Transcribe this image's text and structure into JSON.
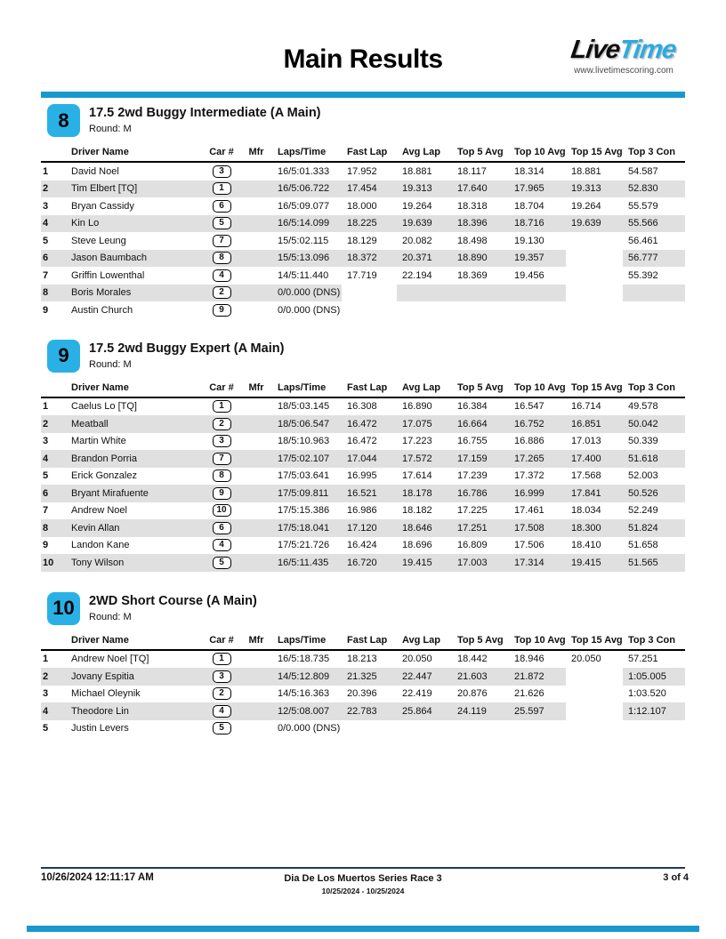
{
  "page": {
    "title": "Main Results",
    "logo": {
      "live": "Live",
      "time": "Time",
      "url": "www.livetimescoring.com"
    },
    "footer": {
      "printed": "10/26/2024 12:11:17 AM",
      "event": "Dia De Los Muertos Series Race 3",
      "dates": "10/25/2024 - 10/25/2024",
      "page": "3 of 4"
    },
    "colors": {
      "accent_badge": "#29b1e6",
      "header_rule": "#1899cc",
      "row_stripe": "#e0e0e0",
      "footer_line": "#1f3864",
      "logo_time": "#29abe2"
    }
  },
  "columns": [
    "Driver Name",
    "Car #",
    "Mfr",
    "Laps/Time",
    "Fast Lap",
    "Avg Lap",
    "Top 5 Avg",
    "Top 10 Avg",
    "Top 15 Avg",
    "Top 3 Con"
  ],
  "sections": [
    {
      "number": "8",
      "title": "17.5 2wd Buggy Intermediate (A Main)",
      "round": "Round: M",
      "rows": [
        {
          "pos": "1",
          "driver": "David Noel",
          "car": "3",
          "mfr": "",
          "laps": "16/5:01.333",
          "fast": "17.952",
          "avg": "18.881",
          "top5": "18.117",
          "top10": "18.314",
          "top15": "18.881",
          "top3": "54.587"
        },
        {
          "pos": "2",
          "driver": "Tim Elbert [TQ]",
          "car": "1",
          "mfr": "",
          "laps": "16/5:06.722",
          "fast": "17.454",
          "avg": "19.313",
          "top5": "17.640",
          "top10": "17.965",
          "top15": "19.313",
          "top3": "52.830"
        },
        {
          "pos": "3",
          "driver": "Bryan Cassidy",
          "car": "6",
          "mfr": "",
          "laps": "16/5:09.077",
          "fast": "18.000",
          "avg": "19.264",
          "top5": "18.318",
          "top10": "18.704",
          "top15": "19.264",
          "top3": "55.579"
        },
        {
          "pos": "4",
          "driver": "Kin Lo",
          "car": "5",
          "mfr": "",
          "laps": "16/5:14.099",
          "fast": "18.225",
          "avg": "19.639",
          "top5": "18.396",
          "top10": "18.716",
          "top15": "19.639",
          "top3": "55.566"
        },
        {
          "pos": "5",
          "driver": "Steve Leung",
          "car": "7",
          "mfr": "",
          "laps": "15/5:02.115",
          "fast": "18.129",
          "avg": "20.082",
          "top5": "18.498",
          "top10": "19.130",
          "top15": "",
          "top3": "56.461"
        },
        {
          "pos": "6",
          "driver": "Jason Baumbach",
          "car": "8",
          "mfr": "",
          "laps": "15/5:13.096",
          "fast": "18.372",
          "avg": "20.371",
          "top5": "18.890",
          "top10": "19.357",
          "top15": "",
          "top3": "56.777"
        },
        {
          "pos": "7",
          "driver": "Griffin Lowenthal",
          "car": "4",
          "mfr": "",
          "laps": "14/5:11.440",
          "fast": "17.719",
          "avg": "22.194",
          "top5": "18.369",
          "top10": "19.456",
          "top15": "",
          "top3": "55.392"
        },
        {
          "pos": "8",
          "driver": "Boris Morales",
          "car": "2",
          "mfr": "",
          "laps": "0/0.000 (DNS)",
          "fast": "",
          "avg": "",
          "top5": "",
          "top10": "",
          "top15": "",
          "top3": ""
        },
        {
          "pos": "9",
          "driver": "Austin Church",
          "car": "9",
          "mfr": "",
          "laps": "0/0.000 (DNS)",
          "fast": "",
          "avg": "",
          "top5": "",
          "top10": "",
          "top15": "",
          "top3": ""
        }
      ]
    },
    {
      "number": "9",
      "title": "17.5 2wd Buggy Expert (A Main)",
      "round": "Round: M",
      "rows": [
        {
          "pos": "1",
          "driver": "Caelus Lo [TQ]",
          "car": "1",
          "mfr": "",
          "laps": "18/5:03.145",
          "fast": "16.308",
          "avg": "16.890",
          "top5": "16.384",
          "top10": "16.547",
          "top15": "16.714",
          "top3": "49.578"
        },
        {
          "pos": "2",
          "driver": "Meatball",
          "car": "2",
          "mfr": "",
          "laps": "18/5:06.547",
          "fast": "16.472",
          "avg": "17.075",
          "top5": "16.664",
          "top10": "16.752",
          "top15": "16.851",
          "top3": "50.042"
        },
        {
          "pos": "3",
          "driver": "Martin White",
          "car": "3",
          "mfr": "",
          "laps": "18/5:10.963",
          "fast": "16.472",
          "avg": "17.223",
          "top5": "16.755",
          "top10": "16.886",
          "top15": "17.013",
          "top3": "50.339"
        },
        {
          "pos": "4",
          "driver": "Brandon Porria",
          "car": "7",
          "mfr": "",
          "laps": "17/5:02.107",
          "fast": "17.044",
          "avg": "17.572",
          "top5": "17.159",
          "top10": "17.265",
          "top15": "17.400",
          "top3": "51.618"
        },
        {
          "pos": "5",
          "driver": "Erick Gonzalez",
          "car": "8",
          "mfr": "",
          "laps": "17/5:03.641",
          "fast": "16.995",
          "avg": "17.614",
          "top5": "17.239",
          "top10": "17.372",
          "top15": "17.568",
          "top3": "52.003"
        },
        {
          "pos": "6",
          "driver": "Bryant Mirafuente",
          "car": "9",
          "mfr": "",
          "laps": "17/5:09.811",
          "fast": "16.521",
          "avg": "18.178",
          "top5": "16.786",
          "top10": "16.999",
          "top15": "17.841",
          "top3": "50.526"
        },
        {
          "pos": "7",
          "driver": "Andrew Noel",
          "car": "10",
          "mfr": "",
          "laps": "17/5:15.386",
          "fast": "16.986",
          "avg": "18.182",
          "top5": "17.225",
          "top10": "17.461",
          "top15": "18.034",
          "top3": "52.249"
        },
        {
          "pos": "8",
          "driver": "Kevin Allan",
          "car": "6",
          "mfr": "",
          "laps": "17/5:18.041",
          "fast": "17.120",
          "avg": "18.646",
          "top5": "17.251",
          "top10": "17.508",
          "top15": "18.300",
          "top3": "51.824"
        },
        {
          "pos": "9",
          "driver": "Landon Kane",
          "car": "4",
          "mfr": "",
          "laps": "17/5:21.726",
          "fast": "16.424",
          "avg": "18.696",
          "top5": "16.809",
          "top10": "17.506",
          "top15": "18.410",
          "top3": "51.658"
        },
        {
          "pos": "10",
          "driver": "Tony Wilson",
          "car": "5",
          "mfr": "",
          "laps": "16/5:11.435",
          "fast": "16.720",
          "avg": "19.415",
          "top5": "17.003",
          "top10": "17.314",
          "top15": "19.415",
          "top3": "51.565"
        }
      ]
    },
    {
      "number": "10",
      "title": "2WD Short Course (A Main)",
      "round": "Round: M",
      "rows": [
        {
          "pos": "1",
          "driver": "Andrew Noel [TQ]",
          "car": "1",
          "mfr": "",
          "laps": "16/5:18.735",
          "fast": "18.213",
          "avg": "20.050",
          "top5": "18.442",
          "top10": "18.946",
          "top15": "20.050",
          "top3": "57.251"
        },
        {
          "pos": "2",
          "driver": "Jovany Espitia",
          "car": "3",
          "mfr": "",
          "laps": "14/5:12.809",
          "fast": "21.325",
          "avg": "22.447",
          "top5": "21.603",
          "top10": "21.872",
          "top15": "",
          "top3": "1:05.005"
        },
        {
          "pos": "3",
          "driver": "Michael Oleynik",
          "car": "2",
          "mfr": "",
          "laps": "14/5:16.363",
          "fast": "20.396",
          "avg": "22.419",
          "top5": "20.876",
          "top10": "21.626",
          "top15": "",
          "top3": "1:03.520"
        },
        {
          "pos": "4",
          "driver": "Theodore Lin",
          "car": "4",
          "mfr": "",
          "laps": "12/5:08.007",
          "fast": "22.783",
          "avg": "25.864",
          "top5": "24.119",
          "top10": "25.597",
          "top15": "",
          "top3": "1:12.107"
        },
        {
          "pos": "5",
          "driver": "Justin Levers",
          "car": "5",
          "mfr": "",
          "laps": "0/0.000 (DNS)",
          "fast": "",
          "avg": "",
          "top5": "",
          "top10": "",
          "top15": "",
          "top3": ""
        }
      ]
    }
  ]
}
